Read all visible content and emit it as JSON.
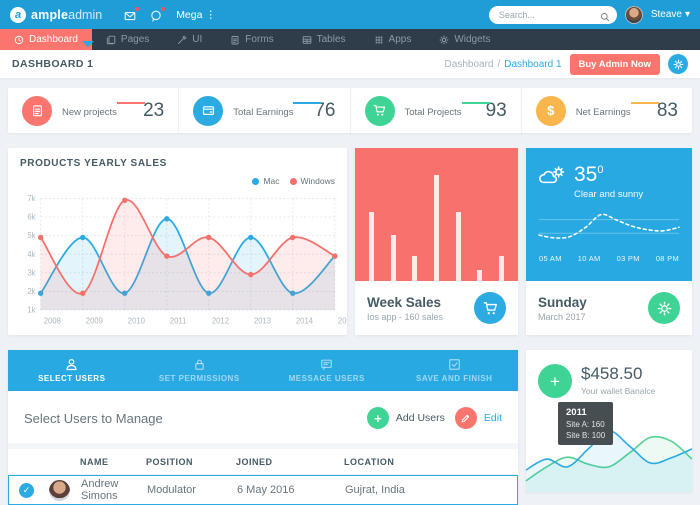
{
  "colors": {
    "topbar_blue": "#1e9dd6",
    "navbar_dark": "#2f3d4a",
    "salmon": "#f9756e",
    "week_card_red": "#f7716d",
    "green": "#3fd495",
    "orange": "#f8b64c",
    "info_blue": "#2cabe3",
    "tab_blue": "#29a9e2",
    "text_dark": "#455a64",
    "text_muted": "#98a6ad"
  },
  "topbar": {
    "logo_mark": "a",
    "logo_bold": "ample",
    "logo_light": "admin",
    "mega_label": "Mega",
    "mega_dots": "⋮",
    "search_placeholder": "Search...",
    "user_name": "Steave",
    "user_caret": "▾"
  },
  "navbar": {
    "items": [
      {
        "label": "Dashboard",
        "icon": "clock-icon",
        "active": true
      },
      {
        "label": "Pages",
        "icon": "pages-icon",
        "active": false
      },
      {
        "label": "UI",
        "icon": "wand-icon",
        "active": false
      },
      {
        "label": "Forms",
        "icon": "clipboard-icon",
        "active": false
      },
      {
        "label": "Tables",
        "icon": "table-icon",
        "active": false
      },
      {
        "label": "Apps",
        "icon": "apps-grid-icon",
        "active": false
      },
      {
        "label": "Widgets",
        "icon": "gear-icon",
        "active": false
      }
    ]
  },
  "breadcrumb_bar": {
    "page_title": "DASHBOARD 1",
    "crumbs": [
      "Dashboard",
      "Dashboard 1"
    ],
    "separator": "/",
    "buy_button_label": "Buy Admin Now"
  },
  "stats": [
    {
      "label": "New projects",
      "value": "23",
      "color": "#f9756e",
      "icon": "clipboard-icon"
    },
    {
      "label": "Total Earnings",
      "value": "76",
      "color": "#2cabe3",
      "icon": "wallet-icon"
    },
    {
      "label": "Total Projects",
      "value": "93",
      "color": "#3fd495",
      "icon": "cart-icon"
    },
    {
      "label": "Net Earnings",
      "value": "83",
      "color": "#f8b64c",
      "icon": "dollar-icon"
    }
  ],
  "products_card": {
    "title": "PRODUCTS YEARLY SALES"
  },
  "week_sales": {
    "title": "Week Sales",
    "subtitle": "Ios app - 160 sales"
  },
  "weather": {
    "temperature": "35",
    "degree_symbol": "0",
    "condition": "Clear and sunny",
    "day": "Sunday",
    "month": "March 2017"
  },
  "tabs": [
    {
      "label": "SELECT USERS",
      "icon": "user-icon",
      "active": true
    },
    {
      "label": "SET PERMISSIONS",
      "icon": "lock-icon",
      "active": false
    },
    {
      "label": "MESSAGE USERS",
      "icon": "message-icon",
      "active": false
    },
    {
      "label": "SAVE AND FINISH",
      "icon": "check-square-icon",
      "active": false
    }
  ],
  "manage": {
    "title": "Select Users to Manage",
    "add_users_label": "Add Users",
    "edit_label": "Edit"
  },
  "users_table": {
    "headers": [
      "NAME",
      "POSITION",
      "JOINED",
      "LOCATION"
    ],
    "rows": [
      {
        "checked": true,
        "name": "Andrew Simons",
        "position": "Modulator",
        "joined": "6 May 2016",
        "location": "Gujrat, India"
      }
    ]
  },
  "wallet": {
    "amount": "$458.50",
    "label": "Your wallet Banalce",
    "tooltip": {
      "title": "2011",
      "line1": "Site A: 160",
      "line2": "Site B: 100"
    }
  },
  "chart_data": [
    {
      "id": "products_yearly_sales",
      "type": "line",
      "title": "PRODUCTS YEARLY SALES",
      "categories": [
        "2008",
        "2009",
        "2010",
        "2011",
        "2012",
        "2013",
        "2014",
        "20"
      ],
      "series": [
        {
          "name": "Mac",
          "color": "#2cabe3",
          "values": [
            1.9,
            4.9,
            1.9,
            5.9,
            1.9,
            4.9,
            1.9,
            3.9
          ]
        },
        {
          "name": "Windows",
          "color": "#f4706b",
          "values": [
            4.9,
            1.9,
            6.9,
            3.9,
            4.9,
            2.9,
            4.9,
            3.9
          ]
        }
      ],
      "unit": "k",
      "ylim": [
        1,
        7
      ],
      "yticks": [
        "1k",
        "2k",
        "3k",
        "4k",
        "5k",
        "6k",
        "7k"
      ],
      "grid": true,
      "legend_position": "top-right"
    },
    {
      "id": "week_sales_bars",
      "type": "bar",
      "title": "Week Sales",
      "values_relative": [
        57,
        38,
        21,
        88,
        57,
        9,
        21
      ]
    },
    {
      "id": "weather_temperature",
      "type": "line",
      "x_labels": [
        "05 AM",
        "10 AM",
        "03 PM",
        "08 PM"
      ],
      "points_normalized": [
        0.3,
        0.22,
        0.26,
        0.52,
        0.88,
        0.72,
        0.55,
        0.45,
        0.42,
        0.52
      ]
    },
    {
      "id": "wallet_balance",
      "type": "line",
      "tooltip": {
        "year": "2011",
        "site_a": 160,
        "site_b": 100
      },
      "series": [
        {
          "name": "Site A",
          "color": "#53d192",
          "points_normalized": [
            0.08,
            0.3,
            0.45,
            0.34,
            0.3,
            0.52,
            0.76,
            0.7,
            0.42
          ]
        },
        {
          "name": "Site B",
          "color": "#2cabe3",
          "points_normalized": [
            0.25,
            0.42,
            0.3,
            0.58,
            0.86,
            0.62,
            0.36,
            0.44,
            0.58
          ]
        }
      ]
    }
  ]
}
